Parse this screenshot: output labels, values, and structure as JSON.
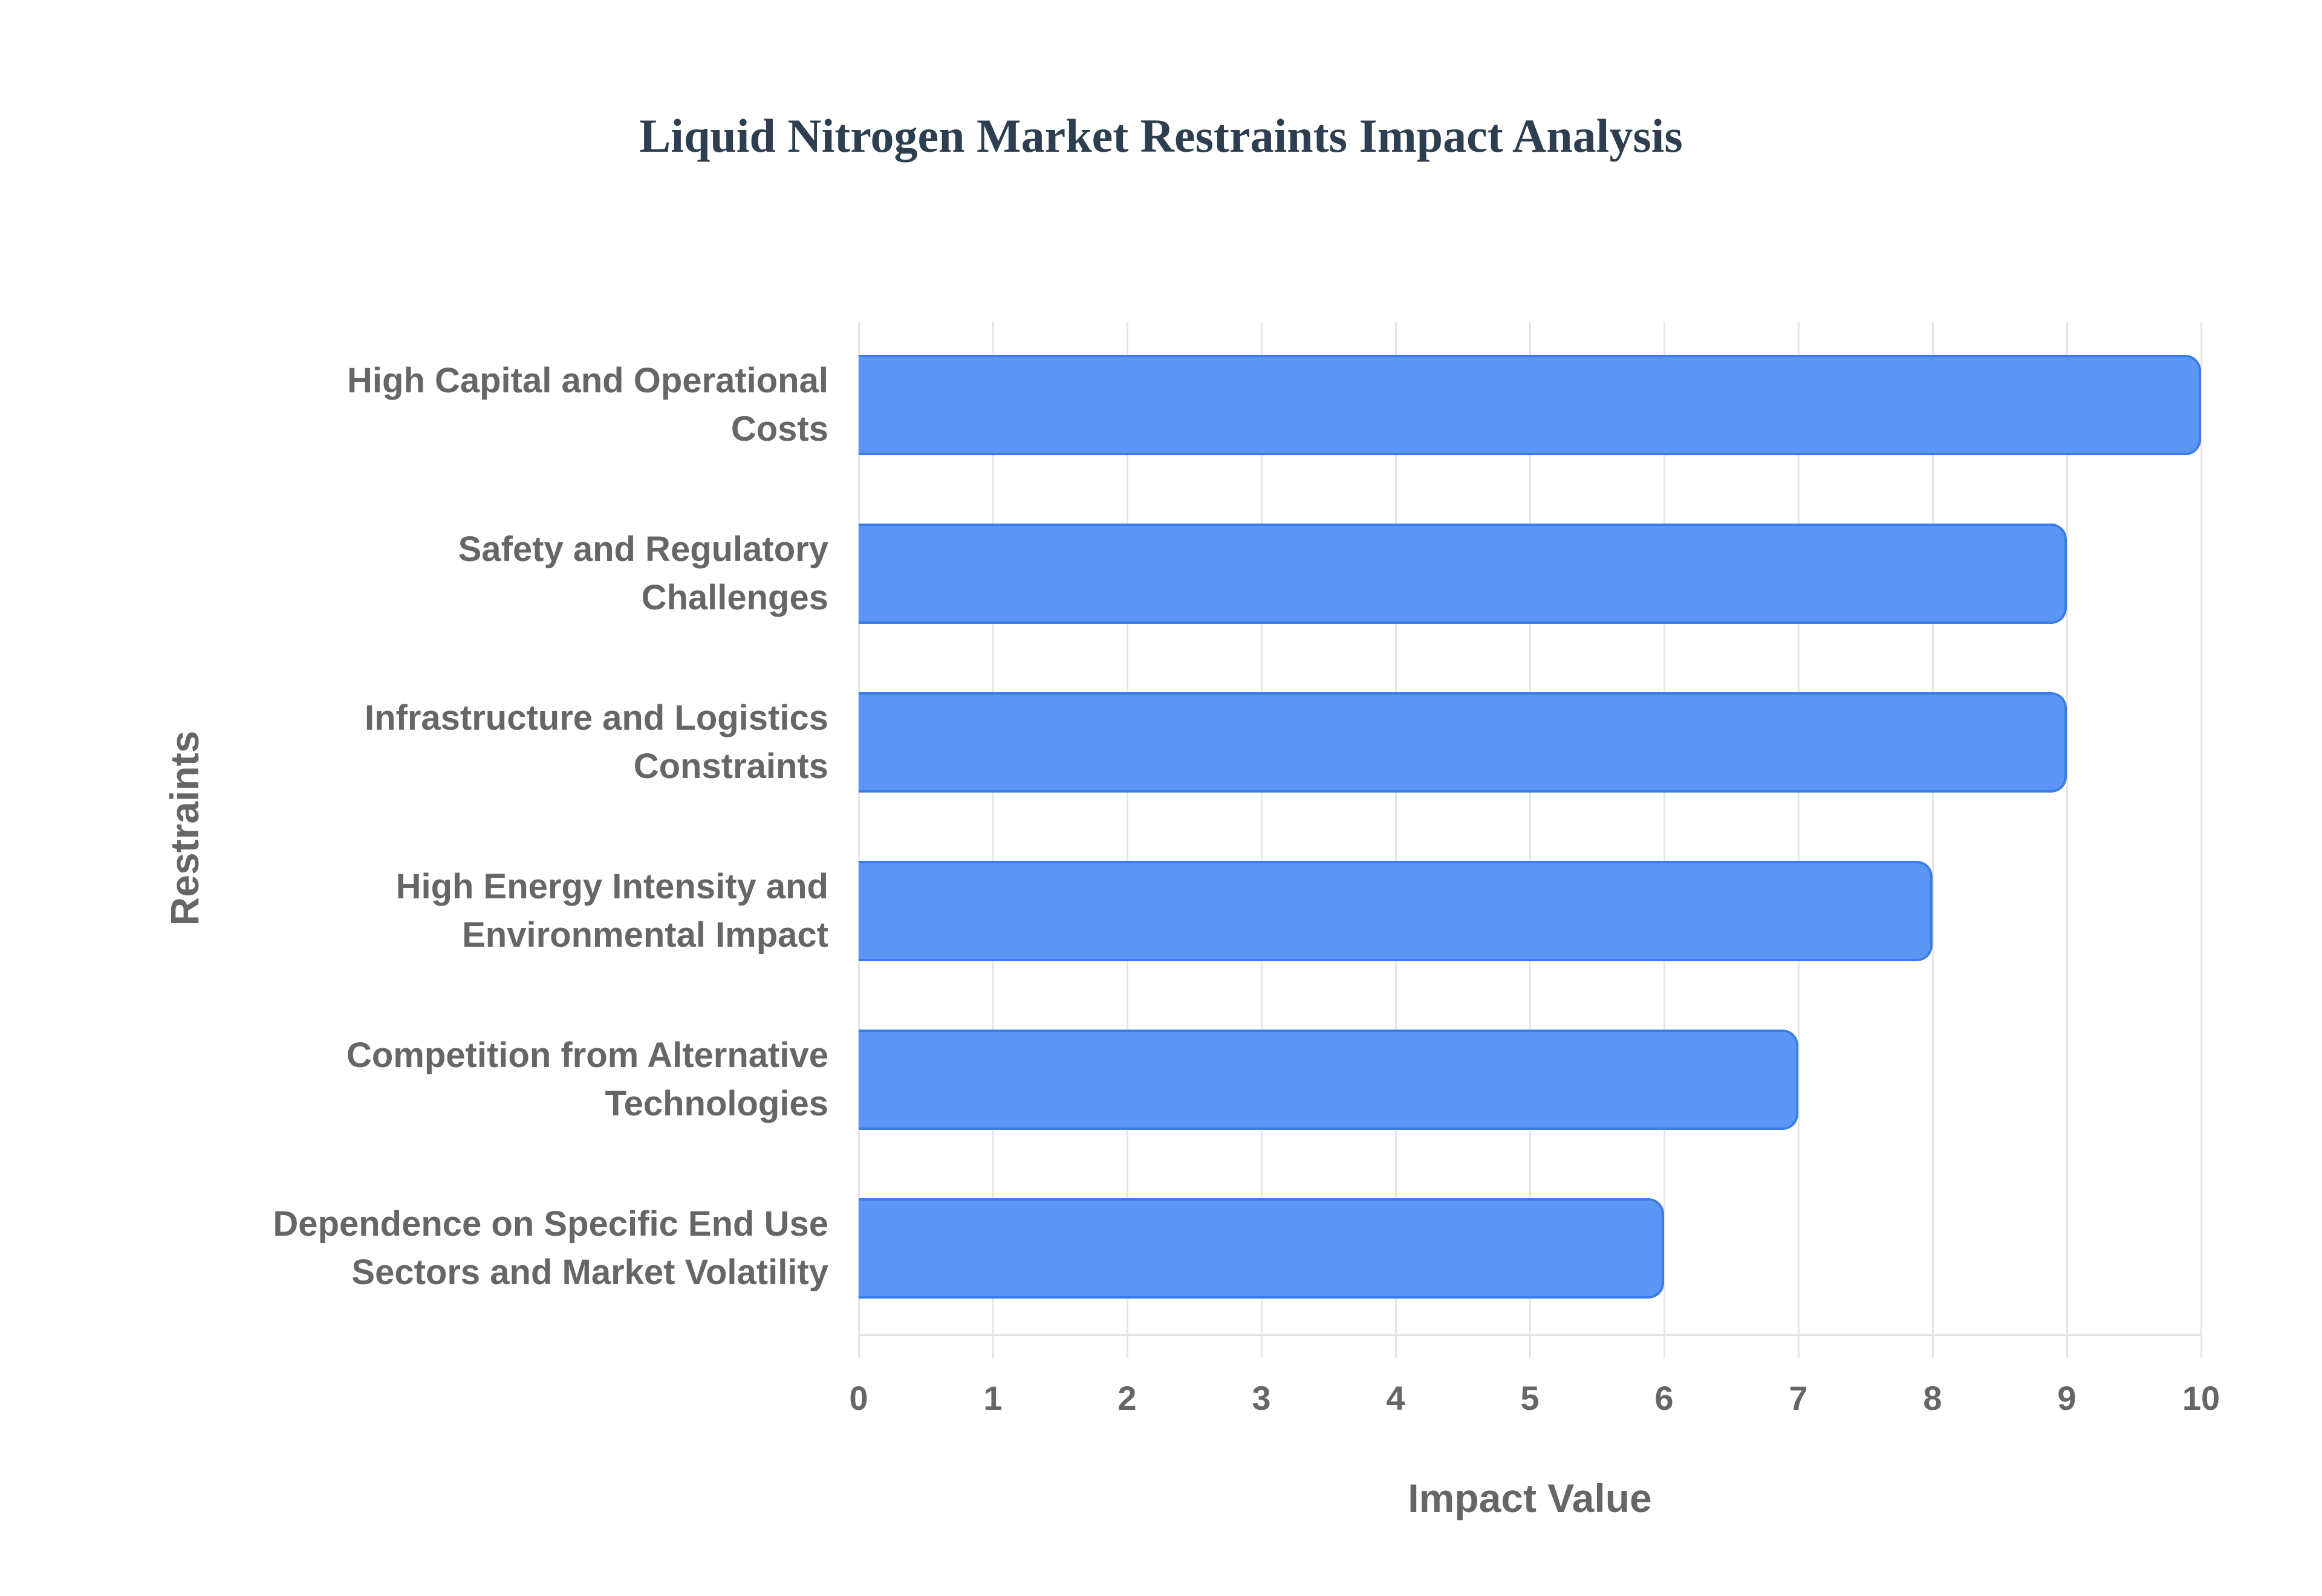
{
  "chart": {
    "title": "Liquid Nitrogen Market Restraints Impact Analysis",
    "xlabel": "Impact Value",
    "ylabel": "Restraints",
    "bar_fill": "#5b96f4",
    "bar_border": "#3b7de8",
    "xticks": [
      "0",
      "1",
      "2",
      "3",
      "4",
      "5",
      "6",
      "7",
      "8",
      "9",
      "10"
    ],
    "categories_display": [
      "High Capital and Operational\nCosts",
      "Safety and Regulatory\nChallenges",
      "Infrastructure and Logistics\nConstraints",
      "High Energy Intensity and\nEnvironmental Impact",
      "Competition from Alternative\nTechnologies",
      "Dependence on Specific End Use\nSectors and Market Volatility"
    ]
  },
  "chart_data": {
    "type": "bar",
    "orientation": "horizontal",
    "title": "Liquid Nitrogen Market Restraints Impact Analysis",
    "xlabel": "Impact Value",
    "ylabel": "Restraints",
    "categories": [
      "High Capital and Operational Costs",
      "Safety and Regulatory Challenges",
      "Infrastructure and Logistics Constraints",
      "High Energy Intensity and Environmental Impact",
      "Competition from Alternative Technologies",
      "Dependence on Specific End Use Sectors and Market Volatility"
    ],
    "values": [
      10,
      9,
      9,
      8,
      7,
      6
    ],
    "xlim": [
      0,
      10
    ],
    "xticks": [
      0,
      1,
      2,
      3,
      4,
      5,
      6,
      7,
      8,
      9,
      10
    ],
    "grid": "vertical",
    "legend": "none"
  }
}
